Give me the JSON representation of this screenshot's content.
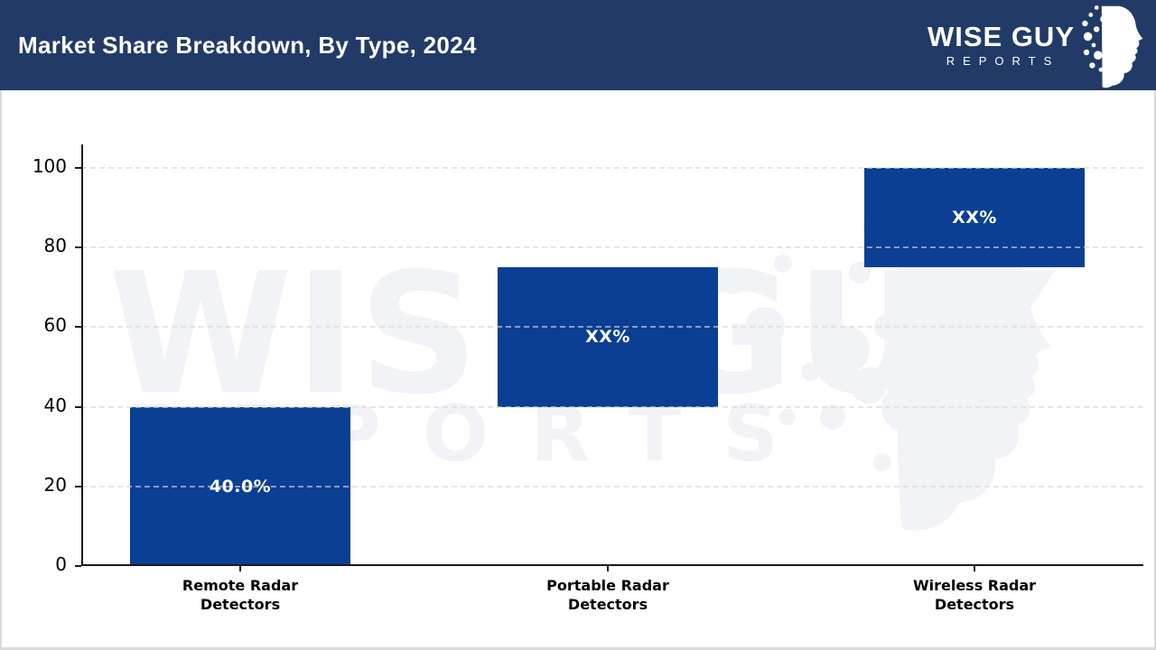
{
  "header": {
    "title": "Market Share Breakdown, By Type, 2024",
    "logo": {
      "name": "WISE GUY",
      "sub": "REPORTS"
    }
  },
  "watermark": {
    "name": "WISE GUY",
    "sub": "REPORTS"
  },
  "colors": {
    "header_bg": "#213A67",
    "bar_blue": "#0A3F93",
    "bar_label": "#FFFFFF",
    "watermark": "#F2F3F6",
    "grid": "#D8D8D8",
    "axis": "#1A1A1A",
    "text": "#000000"
  },
  "chart_data": {
    "type": "bar",
    "variant": "waterfall",
    "title": "Market Share Breakdown, By Type, 2024",
    "categories": [
      "Remote Radar\nDetectors",
      "Portable Radar\nDetectors",
      "Wireless Radar\nDetectors"
    ],
    "series": [
      {
        "name": "Market share (%)",
        "segments": [
          {
            "category": "Remote Radar Detectors",
            "start": 0,
            "end": 40,
            "label": "40.0%"
          },
          {
            "category": "Portable Radar Detectors",
            "start": 40,
            "end": 75,
            "label": "XX%"
          },
          {
            "category": "Wireless Radar Detectors",
            "start": 75,
            "end": 100,
            "label": "XX%"
          }
        ]
      }
    ],
    "yticks": [
      0,
      20,
      40,
      60,
      80,
      100
    ],
    "ylim": [
      0,
      105
    ],
    "xlabel": "",
    "ylabel": "",
    "grid": true,
    "legend": false
  }
}
